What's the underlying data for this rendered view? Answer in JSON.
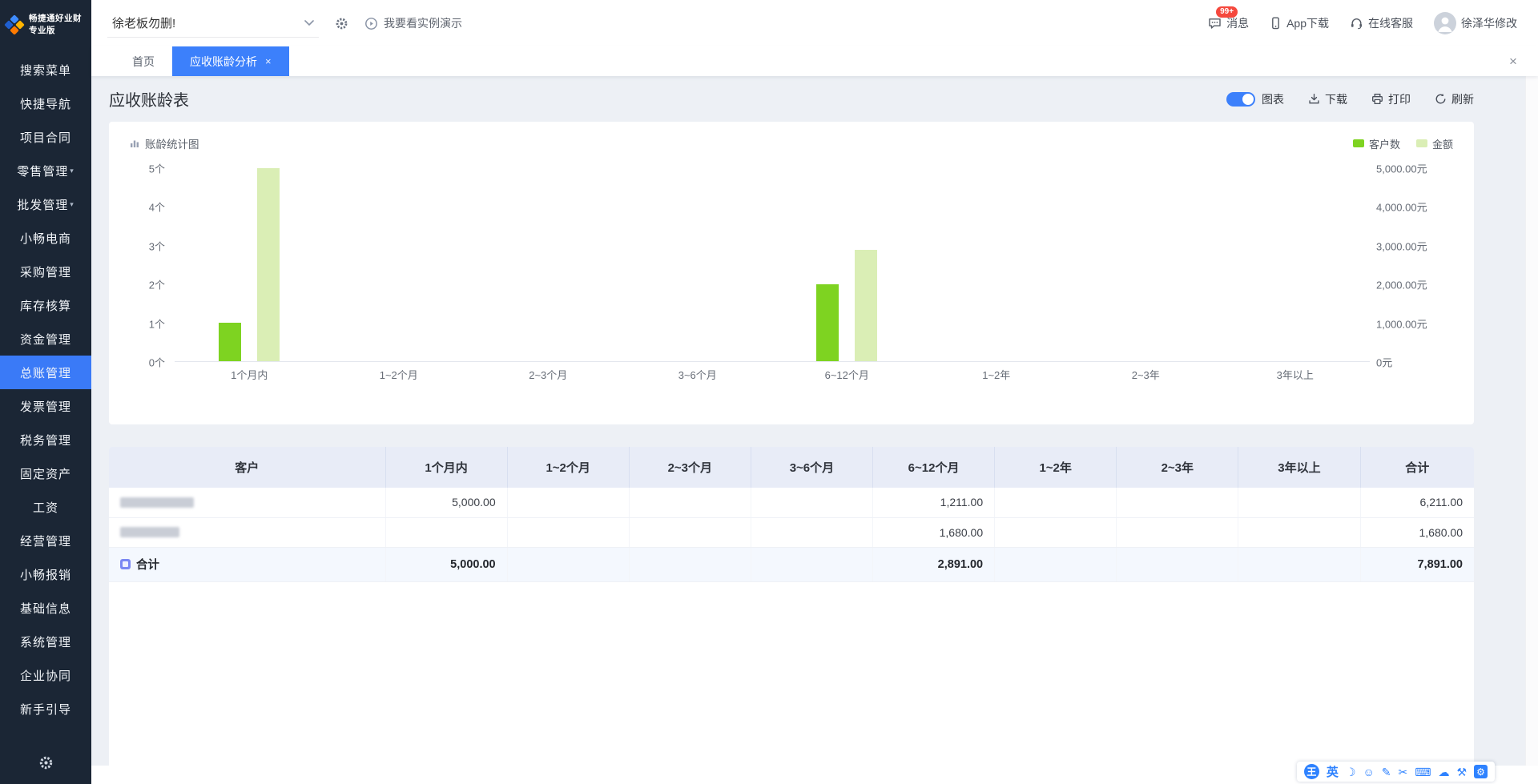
{
  "app": {
    "logo_line1": "畅捷通好业财",
    "logo_line2": "专业版"
  },
  "topbar": {
    "company_selector": "徐老板勿删!",
    "demo_link": "我要看实例演示",
    "message_label": "消息",
    "message_badge": "99+",
    "app_download_label": "App下载",
    "support_label": "在线客服",
    "username": "徐泽华修改"
  },
  "tabs": {
    "close_glyph": "×",
    "close_all_glyph": "×",
    "items": [
      {
        "name": "home",
        "label": "首页",
        "active": false,
        "closable": false
      },
      {
        "name": "receivable-aging-analysis",
        "label": "应收账龄分析",
        "active": true,
        "closable": true
      }
    ]
  },
  "sidebar": {
    "arrow_glyph": "▾",
    "items": [
      {
        "name": "search-menu",
        "label": "搜索菜单"
      },
      {
        "name": "quick-nav",
        "label": "快捷导航"
      },
      {
        "name": "project-contract",
        "label": "项目合同"
      },
      {
        "name": "retail-mgmt",
        "label": "零售管理",
        "has_children": true
      },
      {
        "name": "wholesale-mgmt",
        "label": "批发管理",
        "has_children": true
      },
      {
        "name": "xiaochang-ecommerce",
        "label": "小畅电商"
      },
      {
        "name": "purchase-mgmt",
        "label": "采购管理"
      },
      {
        "name": "inventory-accounting",
        "label": "库存核算"
      },
      {
        "name": "funds-mgmt",
        "label": "资金管理"
      },
      {
        "name": "general-ledger",
        "label": "总账管理",
        "active": true
      },
      {
        "name": "invoice-mgmt",
        "label": "发票管理"
      },
      {
        "name": "tax-mgmt",
        "label": "税务管理"
      },
      {
        "name": "fixed-assets",
        "label": "固定资产"
      },
      {
        "name": "payroll",
        "label": "工资"
      },
      {
        "name": "business-mgmt",
        "label": "经营管理"
      },
      {
        "name": "xiaochang-expense",
        "label": "小畅报销"
      },
      {
        "name": "basic-info",
        "label": "基础信息"
      },
      {
        "name": "system-mgmt",
        "label": "系统管理"
      },
      {
        "name": "enterprise-collab",
        "label": "企业协同"
      },
      {
        "name": "beginner-guide",
        "label": "新手引导"
      }
    ]
  },
  "page": {
    "title": "应收账龄表",
    "toolbar": {
      "chart_toggle_label": "图表",
      "download_label": "下载",
      "print_label": "打印",
      "refresh_label": "刷新"
    }
  },
  "chart_data": {
    "type": "bar",
    "title": "账龄统计图",
    "categories": [
      "1个月内",
      "1~2个月",
      "2~3个月",
      "3~6个月",
      "6~12个月",
      "1~2年",
      "2~3年",
      "3年以上"
    ],
    "series": [
      {
        "name": "客户数",
        "name_en": "customer-count",
        "axis": "left",
        "color": "#7ed321",
        "values": [
          1,
          0,
          0,
          0,
          2,
          0,
          0,
          0
        ]
      },
      {
        "name": "金额",
        "name_en": "amount",
        "axis": "right",
        "color": "#daeeb5",
        "values": [
          5000,
          0,
          0,
          0,
          2891,
          0,
          0,
          0
        ]
      }
    ],
    "left_axis": {
      "max": 5,
      "ticks": [
        "0个",
        "1个",
        "2个",
        "3个",
        "4个",
        "5个"
      ]
    },
    "right_axis": {
      "max": 5000,
      "ticks": [
        "0元",
        "1,000.00元",
        "2,000.00元",
        "3,000.00元",
        "4,000.00元",
        "5,000.00元"
      ]
    },
    "legend_position": "top-right",
    "grid": false
  },
  "table": {
    "headers": [
      "客户",
      "1个月内",
      "1~2个月",
      "2~3个月",
      "3~6个月",
      "6~12个月",
      "1~2年",
      "2~3年",
      "3年以上",
      "合计"
    ],
    "rows": [
      {
        "customer": "",
        "redacted": true,
        "values": [
          "5,000.00",
          "",
          "",
          "",
          "1,211.00",
          "",
          "",
          "",
          "6,211.00"
        ]
      },
      {
        "customer": "",
        "redacted": true,
        "values": [
          "",
          "",
          "",
          "",
          "1,680.00",
          "",
          "",
          "",
          "1,680.00"
        ]
      }
    ],
    "total": {
      "label": "合计",
      "values": [
        "5,000.00",
        "",
        "",
        "",
        "2,891.00",
        "",
        "",
        "",
        "7,891.00"
      ]
    }
  },
  "ime": {
    "logo_glyph": "王",
    "lang_label": "英",
    "icons": [
      {
        "name": "skin-icon",
        "glyph": "☽"
      },
      {
        "name": "emoji-icon",
        "glyph": "☺"
      },
      {
        "name": "handwriting-icon",
        "glyph": "✎"
      },
      {
        "name": "screenshot-icon",
        "glyph": "✂"
      },
      {
        "name": "keyboard-icon",
        "glyph": "⌨"
      },
      {
        "name": "cloud-icon",
        "glyph": "☁"
      },
      {
        "name": "toolbox-icon",
        "glyph": "⚒"
      },
      {
        "name": "settings-icon",
        "glyph": "⚙",
        "boxed": true
      }
    ]
  },
  "colors": {
    "accent": "#3c80fb",
    "sidebar_bg": "#1b2635",
    "sidebar_active": "#3a7af7",
    "badge": "#f5483d",
    "customer_series": "#7ed321",
    "amount_series": "#daeeb5",
    "table_header_bg": "#e8ecf7"
  }
}
